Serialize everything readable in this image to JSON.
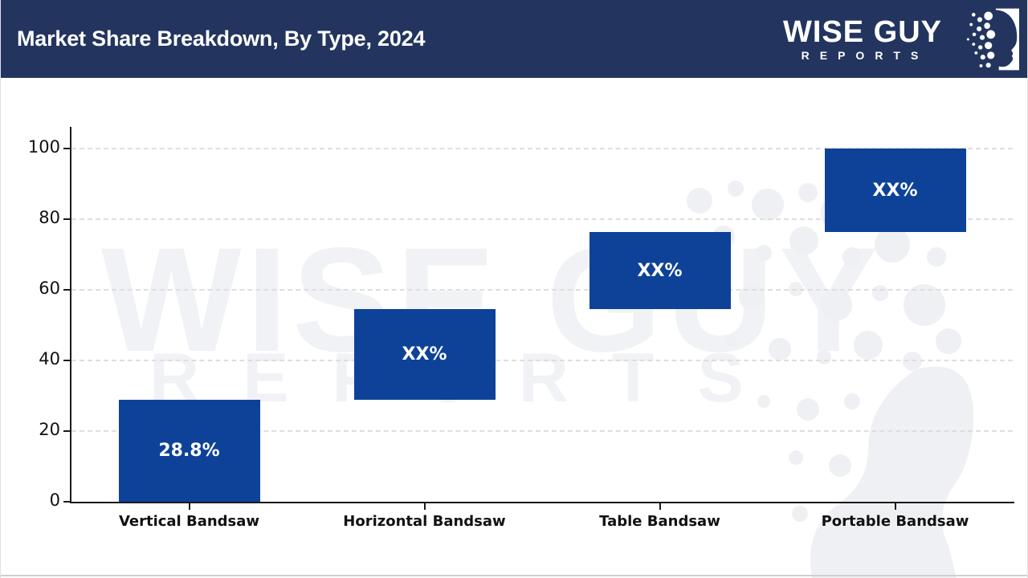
{
  "header": {
    "title": "Market Share Breakdown, By Type, 2024",
    "bg_color": "#23355E",
    "logo": {
      "line1": "WISE GUY",
      "line2": "REPORTS"
    }
  },
  "watermark": {
    "line1": "WISE GUY",
    "line2": "REPORTS"
  },
  "chart_data": {
    "type": "bar",
    "subtype": "floating-waterfall",
    "title": "Market Share Breakdown, By Type, 2024",
    "xlabel": "",
    "ylabel": "",
    "ylim": [
      0,
      100
    ],
    "yticks": [
      0,
      20,
      40,
      60,
      80,
      100
    ],
    "grid": "horizontal-dashed",
    "legend": "none",
    "bar_color": "#0D4298",
    "label_color": "#FFFFFF",
    "categories": [
      "Vertical Bandsaw",
      "Horizontal Bandsaw",
      "Table Bandsaw",
      "Portable Bandsaw"
    ],
    "bars": [
      {
        "category": "Vertical Bandsaw",
        "start": 0,
        "end": 28.8,
        "label": "28.8%"
      },
      {
        "category": "Horizontal Bandsaw",
        "start": 28.8,
        "end": 54.5,
        "label": "XX%"
      },
      {
        "category": "Table Bandsaw",
        "start": 54.5,
        "end": 76.3,
        "label": "XX%"
      },
      {
        "category": "Portable Bandsaw",
        "start": 76.3,
        "end": 100,
        "label": "XX%"
      }
    ]
  }
}
